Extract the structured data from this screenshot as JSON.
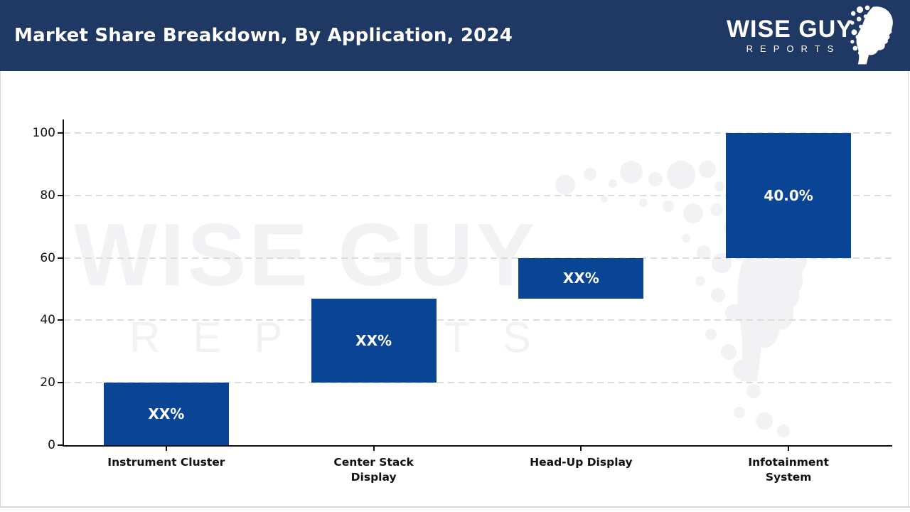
{
  "header": {
    "title": "Market Share Breakdown, By Application, 2024",
    "logo": {
      "line1": "WISE GUY",
      "line2": "REPORTS"
    }
  },
  "watermark": {
    "line1": "WISE GUY",
    "line2": "REPORTS"
  },
  "colors": {
    "header_bg": "#1F3864",
    "bar": "#0A4595",
    "grid": "#DCDCDC",
    "axis": "#111111",
    "bar_label": "#FFFFFF",
    "watermark": "#F2F2F4"
  },
  "chart_data": {
    "type": "bar",
    "subtype": "waterfall",
    "title": "Market Share Breakdown, By Application, 2024",
    "categories": [
      "Instrument Cluster",
      "Center Stack\nDisplay",
      "Head-Up Display",
      "Infotainment\nSystem"
    ],
    "values": [
      20,
      27,
      13,
      40
    ],
    "segments": [
      {
        "category": "Instrument Cluster",
        "start": 0,
        "end": 20,
        "label": "XX%"
      },
      {
        "category": "Center Stack\nDisplay",
        "start": 20,
        "end": 47,
        "label": "XX%"
      },
      {
        "category": "Head-Up Display",
        "start": 47,
        "end": 60,
        "label": "XX%"
      },
      {
        "category": "Infotainment\nSystem",
        "start": 60,
        "end": 100,
        "label": "40.0%"
      }
    ],
    "xlabel": "",
    "ylabel": "",
    "ylim": [
      0,
      100
    ],
    "yticks": [
      0,
      20,
      40,
      60,
      80,
      100
    ],
    "grid": "horizontal-dashed",
    "legend": "none"
  }
}
